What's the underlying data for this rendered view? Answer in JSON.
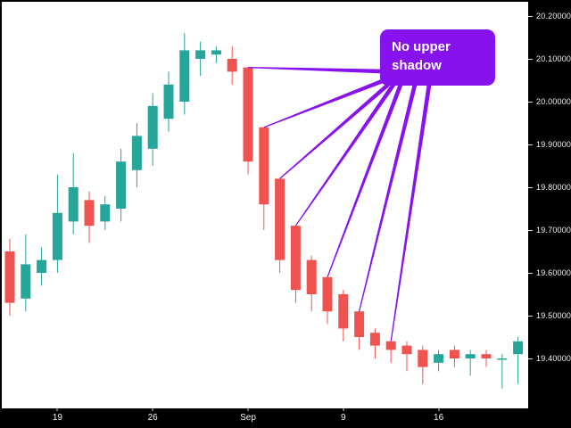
{
  "chart_data": {
    "type": "candlestick",
    "title": "",
    "up_color": "#26a69a",
    "down_color": "#ef5350",
    "background_color": "#ffffff",
    "frame_color": "#000000",
    "grid": false,
    "y_axis_labels": [
      {
        "price": 20.2,
        "label": "20.20000"
      },
      {
        "price": 20.1,
        "label": "20.10000"
      },
      {
        "price": 20.0,
        "label": "20.00000"
      },
      {
        "price": 19.9,
        "label": "19.90000"
      },
      {
        "price": 19.8,
        "label": "19.80000"
      },
      {
        "price": 19.7,
        "label": "19.70000"
      },
      {
        "price": 19.6,
        "label": "19.60000"
      },
      {
        "price": 19.5,
        "label": "19.50000"
      },
      {
        "price": 19.4,
        "label": "19.40000"
      }
    ],
    "x_axis_labels": [
      {
        "index": 3,
        "label": "19"
      },
      {
        "index": 9,
        "label": "26"
      },
      {
        "index": 15,
        "label": "Sep"
      },
      {
        "index": 21,
        "label": "9"
      },
      {
        "index": 27,
        "label": "16"
      }
    ],
    "y_range": [
      19.3,
      20.23
    ],
    "candles": [
      {
        "o": 19.65,
        "h": 19.68,
        "l": 19.5,
        "c": 19.53
      },
      {
        "o": 19.54,
        "h": 19.69,
        "l": 19.51,
        "c": 19.62
      },
      {
        "o": 19.6,
        "h": 19.66,
        "l": 19.57,
        "c": 19.63
      },
      {
        "o": 19.63,
        "h": 19.83,
        "l": 19.6,
        "c": 19.74
      },
      {
        "o": 19.72,
        "h": 19.88,
        "l": 19.69,
        "c": 19.8
      },
      {
        "o": 19.77,
        "h": 19.79,
        "l": 19.67,
        "c": 19.71
      },
      {
        "o": 19.72,
        "h": 19.78,
        "l": 19.7,
        "c": 19.76
      },
      {
        "o": 19.75,
        "h": 19.89,
        "l": 19.72,
        "c": 19.86
      },
      {
        "o": 19.84,
        "h": 19.95,
        "l": 19.8,
        "c": 19.92
      },
      {
        "o": 19.89,
        "h": 20.02,
        "l": 19.85,
        "c": 19.99
      },
      {
        "o": 19.96,
        "h": 20.07,
        "l": 19.93,
        "c": 20.04
      },
      {
        "o": 20.0,
        "h": 20.16,
        "l": 19.97,
        "c": 20.12
      },
      {
        "o": 20.1,
        "h": 20.14,
        "l": 20.06,
        "c": 20.12
      },
      {
        "o": 20.11,
        "h": 20.13,
        "l": 20.09,
        "c": 20.12
      },
      {
        "o": 20.1,
        "h": 20.13,
        "l": 20.04,
        "c": 20.07
      },
      {
        "o": 20.08,
        "h": 20.08,
        "l": 19.83,
        "c": 19.86
      },
      {
        "o": 19.94,
        "h": 19.94,
        "l": 19.7,
        "c": 19.76
      },
      {
        "o": 19.82,
        "h": 19.82,
        "l": 19.6,
        "c": 19.63
      },
      {
        "o": 19.71,
        "h": 19.71,
        "l": 19.53,
        "c": 19.56
      },
      {
        "o": 19.63,
        "h": 19.64,
        "l": 19.51,
        "c": 19.55
      },
      {
        "o": 19.59,
        "h": 19.59,
        "l": 19.48,
        "c": 19.51
      },
      {
        "o": 19.55,
        "h": 19.56,
        "l": 19.44,
        "c": 19.47
      },
      {
        "o": 19.51,
        "h": 19.51,
        "l": 19.42,
        "c": 19.45
      },
      {
        "o": 19.46,
        "h": 19.47,
        "l": 19.4,
        "c": 19.43
      },
      {
        "o": 19.44,
        "h": 19.44,
        "l": 19.39,
        "c": 19.42
      },
      {
        "o": 19.43,
        "h": 19.44,
        "l": 19.37,
        "c": 19.41
      },
      {
        "o": 19.42,
        "h": 19.43,
        "l": 19.34,
        "c": 19.38
      },
      {
        "o": 19.39,
        "h": 19.42,
        "l": 19.37,
        "c": 19.41
      },
      {
        "o": 19.42,
        "h": 19.43,
        "l": 19.38,
        "c": 19.4
      },
      {
        "o": 19.4,
        "h": 19.42,
        "l": 19.36,
        "c": 19.41
      },
      {
        "o": 19.41,
        "h": 19.42,
        "l": 19.38,
        "c": 19.4
      },
      {
        "o": 19.4,
        "h": 19.41,
        "l": 19.33,
        "c": 19.4
      },
      {
        "o": 19.41,
        "h": 19.45,
        "l": 19.34,
        "c": 19.44
      }
    ],
    "annotation": {
      "line1": "No upper",
      "line2": "shadow",
      "box_color": "#8812ee",
      "text_color": "#ffffff",
      "pointer_color": "#8812ee",
      "pointer_target_candles": [
        15,
        16,
        17,
        18,
        20,
        22,
        24
      ]
    }
  }
}
